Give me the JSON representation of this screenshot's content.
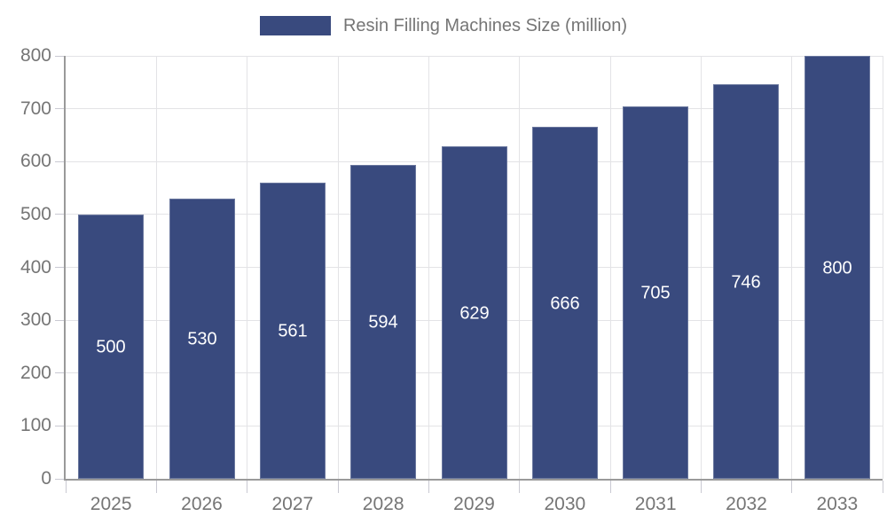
{
  "chart_data": {
    "type": "bar",
    "title": "Resin Filling Machines Size (million)",
    "legend": [
      "Resin Filling Machines Size (million)"
    ],
    "legend_position": "top",
    "categories": [
      "2025",
      "2026",
      "2027",
      "2028",
      "2029",
      "2030",
      "2031",
      "2032",
      "2033"
    ],
    "values": [
      500,
      530,
      561,
      594,
      629,
      666,
      705,
      746,
      800
    ],
    "xlabel": "",
    "ylabel": "",
    "ylim": [
      0,
      800
    ],
    "ytick_step": 100,
    "yticks": [
      0,
      100,
      200,
      300,
      400,
      500,
      600,
      700,
      800
    ],
    "grid": true,
    "bar_color": "#394A7E",
    "bar_label_color": "#ffffff",
    "axis_text_color": "#757575",
    "gridline_color": "#e3e3e6",
    "axis_line_color": "#9a9a9a"
  }
}
